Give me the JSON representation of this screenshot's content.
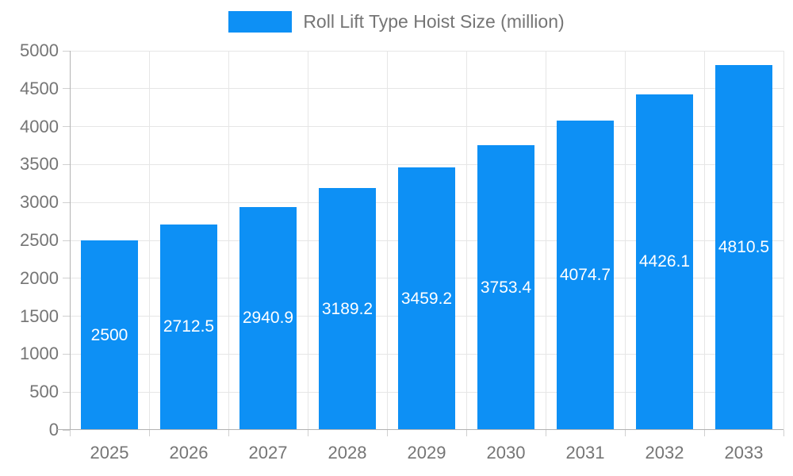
{
  "legend": {
    "label": "Roll Lift Type Hoist Size (million)"
  },
  "chart_data": {
    "type": "bar",
    "title": "Roll Lift Type Hoist Size (million)",
    "series_name": "Roll Lift Type Hoist Size (million)",
    "categories": [
      "2025",
      "2026",
      "2027",
      "2028",
      "2029",
      "2030",
      "2031",
      "2032",
      "2033"
    ],
    "values": [
      2500,
      2712.5,
      2940.9,
      3189.2,
      3459.2,
      3753.4,
      4074.7,
      4426.1,
      4810.5
    ],
    "value_labels": [
      "2500",
      "2712.5",
      "2940.9",
      "3189.2",
      "3459.2",
      "3753.4",
      "4074.7",
      "4426.1",
      "4810.5"
    ],
    "xlabel": "",
    "ylabel": "",
    "ylim": [
      0,
      5000
    ],
    "yticks": [
      0,
      500,
      1000,
      1500,
      2000,
      2500,
      3000,
      3500,
      4000,
      4500,
      5000
    ],
    "grid": true,
    "legend_position": "top-center",
    "colors": {
      "bar": "#0d90f5",
      "bar_label_text": "#ffffff",
      "axis_text": "#757575",
      "axis_line": "#b3b3b3",
      "gridline": "#e6e6e6",
      "tick": "#d0d0d0",
      "background": "#ffffff"
    }
  }
}
